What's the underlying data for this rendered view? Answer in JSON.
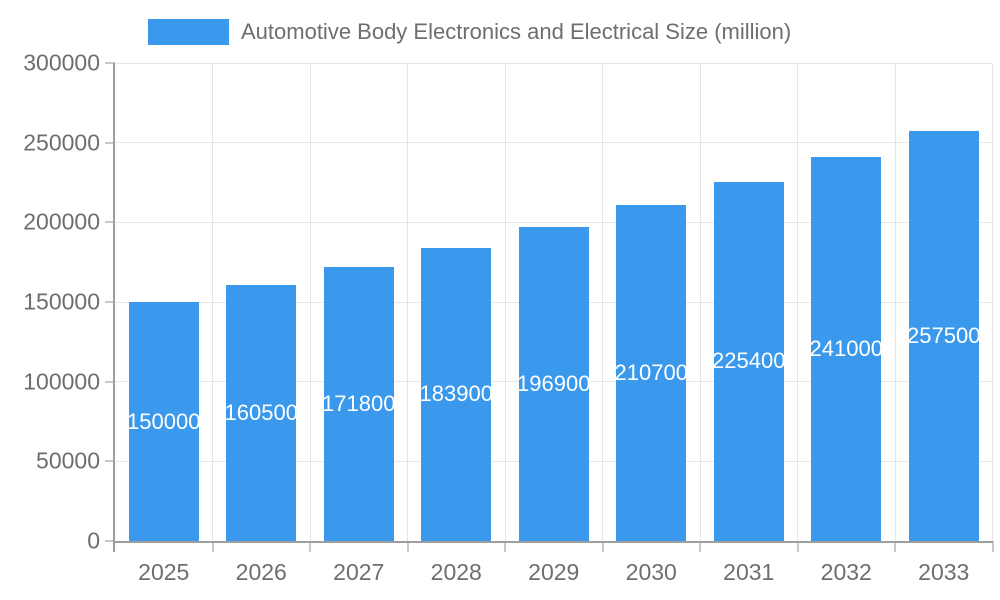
{
  "chart_data": {
    "type": "bar",
    "series_name": "Automotive Body Electronics and Electrical Size (million)",
    "categories": [
      "2025",
      "2026",
      "2027",
      "2028",
      "2029",
      "2030",
      "2031",
      "2032",
      "2033"
    ],
    "values": [
      150000,
      160500,
      171800,
      183900,
      196900,
      210700,
      225400,
      241000,
      257500
    ],
    "bar_value_labels": [
      "150000",
      "160500",
      "171800",
      "183900",
      "196900",
      "210700",
      "225400",
      "241000",
      "257500"
    ],
    "title": "",
    "xlabel": "",
    "ylabel": "",
    "ylim": [
      0,
      300000
    ],
    "yticks": [
      0,
      50000,
      100000,
      150000,
      200000,
      250000,
      300000
    ],
    "ytick_labels": [
      "0",
      "50000",
      "100000",
      "150000",
      "200000",
      "250000",
      "300000"
    ],
    "grid": true,
    "legend_position": "top",
    "colors": {
      "bar": "#3A99EC",
      "grid": "#E6E6E6",
      "axis": "#9E9E9E",
      "tickc": "#C9C9C9",
      "text": "#6E6E6E",
      "bar_label": "#FFFFFF"
    }
  }
}
